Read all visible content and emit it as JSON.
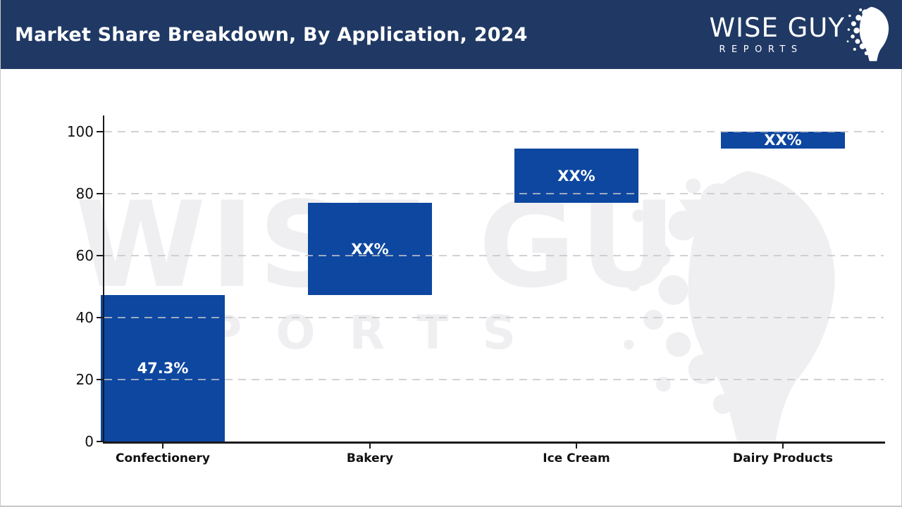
{
  "header": {
    "title": "Market Share Breakdown, By Application, 2024",
    "logo": {
      "line1": "WISE GUY",
      "line2": "REPORTS"
    }
  },
  "watermark": {
    "line1": "WISE GUY",
    "line2": "PORTS"
  },
  "colors": {
    "header_bg": "#1f3864",
    "bar": "#0d47a0",
    "axis": "#1a1a1a",
    "gridline": "#d9d9d9",
    "bar_label_text": "#ffffff",
    "watermark": "#efeff1"
  },
  "chart_data": {
    "type": "bar",
    "subtype": "floating-waterfall",
    "title": "Market Share Breakdown, By Application, 2024",
    "categories": [
      "Confectionery",
      "Bakery",
      "Ice Cream",
      "Dairy Products"
    ],
    "segments": [
      {
        "category": "Confectionery",
        "start": 0,
        "end": 47.3,
        "label": "47.3%"
      },
      {
        "category": "Bakery",
        "start": 47.3,
        "end": 77,
        "label": "XX%"
      },
      {
        "category": "Ice Cream",
        "start": 77,
        "end": 94.5,
        "label": "XX%"
      },
      {
        "category": "Dairy Products",
        "start": 94.5,
        "end": 100,
        "label": "XX%"
      }
    ],
    "xlabel": "",
    "ylabel": "",
    "ylim": [
      0,
      100
    ],
    "yticks": [
      0,
      20,
      40,
      60,
      80,
      100
    ],
    "grid": "dashed horizontal gridlines drawn over bars",
    "legend": "none"
  }
}
